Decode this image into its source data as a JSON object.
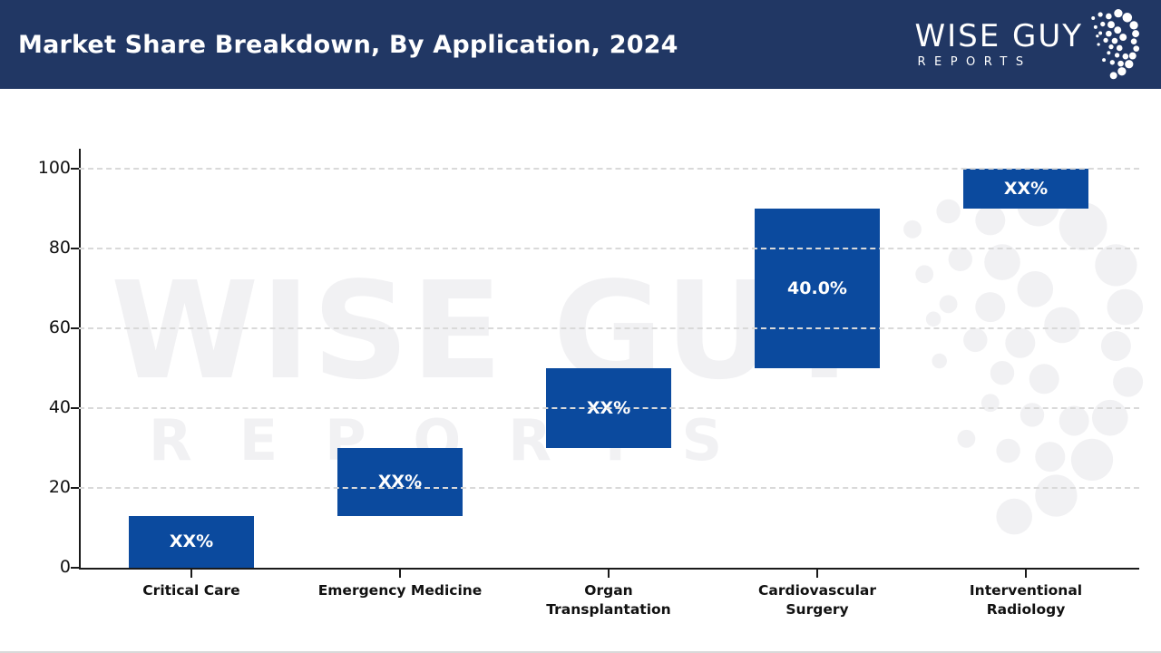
{
  "header": {
    "bg_color": "#213764",
    "title": "Market Share Breakdown, By Application, 2024",
    "logo": {
      "wordmark": "WISE GUY",
      "sub": "REPORTS"
    }
  },
  "watermark": {
    "wordmark": "WISE GUY",
    "sub": "REPORTS"
  },
  "chart_data": {
    "type": "bar",
    "variant": "floating-waterfall",
    "title": "Market Share Breakdown, By Application, 2024",
    "categories": [
      "Critical Care",
      "Emergency Medicine",
      "Organ Transplantation",
      "Cardiovascular Surgery",
      "Interventional Radiology"
    ],
    "category_lines": [
      [
        "Critical Care"
      ],
      [
        "Emergency Medicine"
      ],
      [
        "Organ",
        "Transplantation"
      ],
      [
        "Cardiovascular",
        "Surgery"
      ],
      [
        "Interventional",
        "Radiology"
      ]
    ],
    "segments": [
      {
        "category": "Critical Care",
        "start": 0,
        "end": 13,
        "label": "XX%"
      },
      {
        "category": "Emergency Medicine",
        "start": 13,
        "end": 30,
        "label": "XX%"
      },
      {
        "category": "Organ Transplantation",
        "start": 30,
        "end": 50,
        "label": "XX%"
      },
      {
        "category": "Cardiovascular Surgery",
        "start": 50,
        "end": 90,
        "label": "40.0%"
      },
      {
        "category": "Interventional Radiology",
        "start": 90,
        "end": 100,
        "label": "XX%"
      }
    ],
    "yticks": [
      0,
      20,
      40,
      60,
      80,
      100
    ],
    "ylim": [
      0,
      105
    ],
    "grid": true,
    "legend": false,
    "bar_color": "#0b4a9e",
    "bar_label_color": "#ffffff",
    "axis_color": "#1a1a1a",
    "grid_color": "#d9d9d9",
    "xlabel": "",
    "ylabel": ""
  }
}
